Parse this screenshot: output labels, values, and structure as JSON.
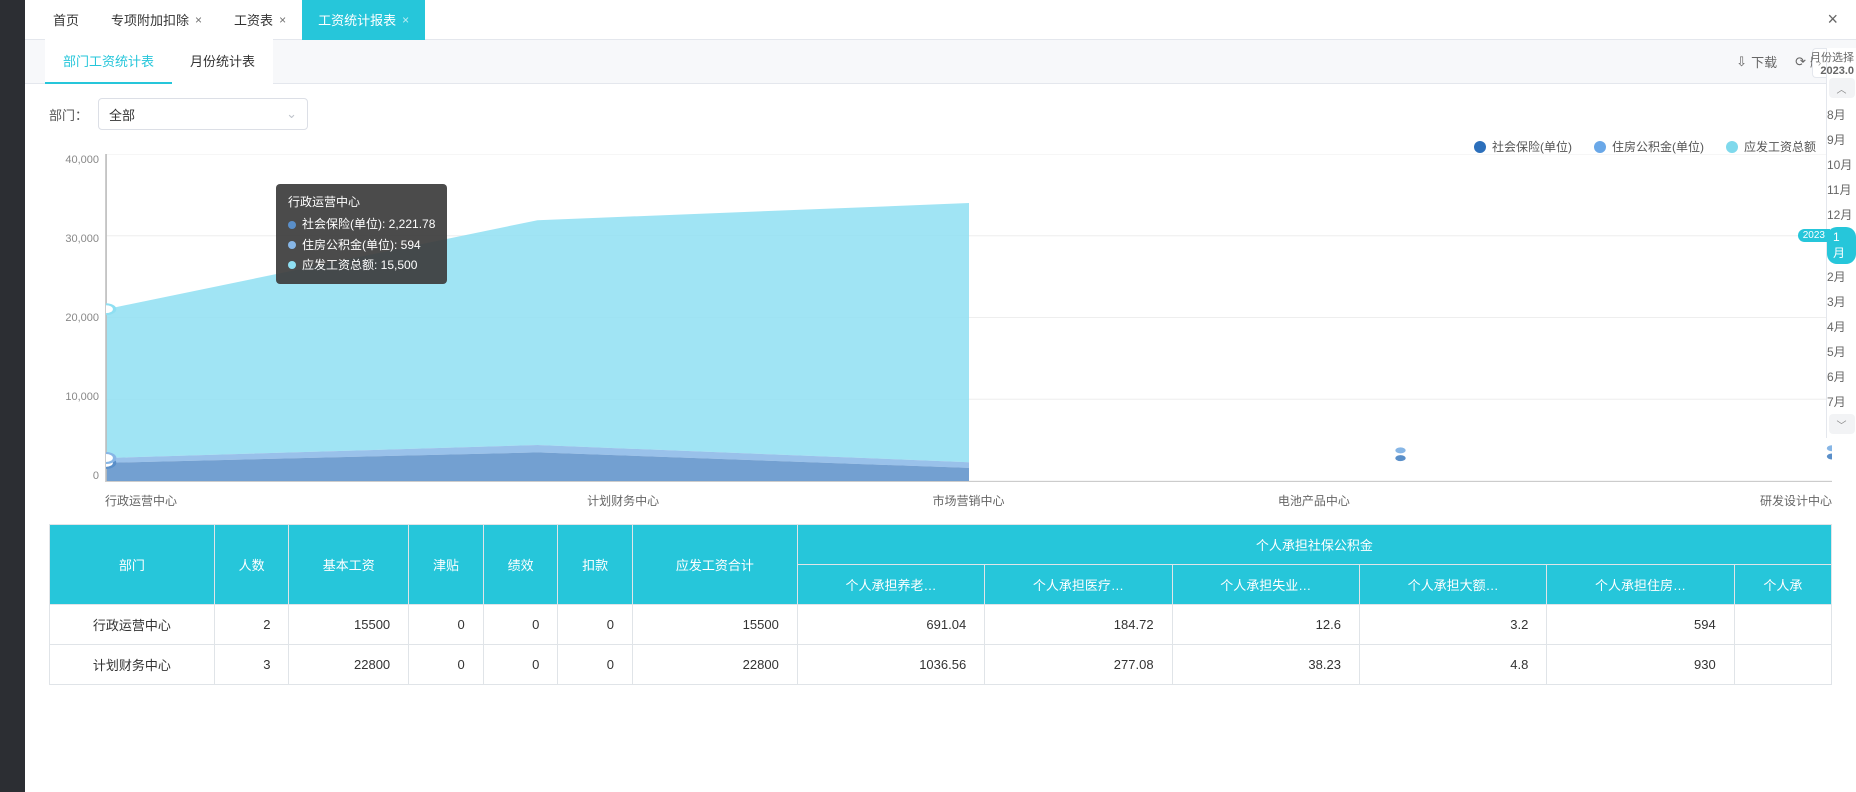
{
  "tabs": {
    "items": [
      {
        "label": "首页",
        "closable": false
      },
      {
        "label": "专项附加扣除",
        "closable": true
      },
      {
        "label": "工资表",
        "closable": true
      },
      {
        "label": "工资统计报表",
        "closable": true,
        "active": true
      }
    ],
    "close_glyph": "×"
  },
  "subtabs": {
    "items": [
      {
        "label": "部门工资统计表",
        "active": true
      },
      {
        "label": "月份统计表"
      }
    ]
  },
  "actions": {
    "download": "下载",
    "refresh": "刷新"
  },
  "filter": {
    "label": "部门：",
    "value": "全部"
  },
  "chart": {
    "legend": [
      {
        "label": "社会保险(单位)",
        "color": "#2c6fbb"
      },
      {
        "label": "住房公积金(单位)",
        "color": "#6aa8e8"
      },
      {
        "label": "应发工资总额",
        "color": "#7fd9ec"
      }
    ],
    "y_ticks": [
      "40,000",
      "30,000",
      "20,000",
      "10,000",
      "0"
    ],
    "ylim": [
      0,
      40000
    ],
    "x_categories": [
      "行政运营中心",
      "计划财务中心",
      "市场营销中心",
      "电池产品中心",
      "研发设计中心"
    ],
    "series_social": [
      2221.78,
      3500,
      1600,
      2800,
      3000
    ],
    "series_fund": [
      594,
      900,
      700,
      950,
      1000
    ],
    "series_salary": [
      18200,
      27500,
      31700,
      null,
      null
    ],
    "area_fill_end_index": 2,
    "colors": {
      "area_social": "#5a8fc9",
      "area_fund": "#87b6e6",
      "area_salary": "#8fdff2",
      "grid": "#eeeeee",
      "background": "#ffffff"
    },
    "pointer_x_index": 0,
    "tooltip": {
      "title": "行政运营中心",
      "rows": [
        {
          "label": "社会保险(单位): 2,221.78",
          "color": "#5a8fc9"
        },
        {
          "label": "住房公积金(单位): 594",
          "color": "#87b6e6"
        },
        {
          "label": "应发工资总额: 15,500",
          "color": "#8fdff2"
        }
      ]
    }
  },
  "table": {
    "group_header": "个人承担社保公积金",
    "columns": [
      "部门",
      "人数",
      "基本工资",
      "津贴",
      "绩效",
      "扣款",
      "应发工资合计",
      "个人承担养老…",
      "个人承担医疗…",
      "个人承担失业…",
      "个人承担大额…",
      "个人承担住房…",
      "个人承"
    ],
    "rows": [
      {
        "dept": "行政运营中心",
        "count": "2",
        "base": "15500",
        "allow": "0",
        "perf": "0",
        "deduct": "0",
        "gross": "15500",
        "p1": "691.04",
        "p2": "184.72",
        "p3": "12.6",
        "p4": "3.2",
        "p5": "594",
        "p6": ""
      },
      {
        "dept": "计划财务中心",
        "count": "3",
        "base": "22800",
        "allow": "0",
        "perf": "0",
        "deduct": "0",
        "gross": "22800",
        "p1": "1036.56",
        "p2": "277.08",
        "p3": "38.23",
        "p4": "4.8",
        "p5": "930",
        "p6": ""
      }
    ]
  },
  "month_panel": {
    "header": "月份选择",
    "year_display": "2023.0",
    "year_badge": "2023",
    "months": [
      "8月",
      "9月",
      "10月",
      "11月",
      "12月",
      "1月",
      "2月",
      "3月",
      "4月",
      "5月",
      "6月",
      "7月"
    ],
    "active_index": 5
  }
}
